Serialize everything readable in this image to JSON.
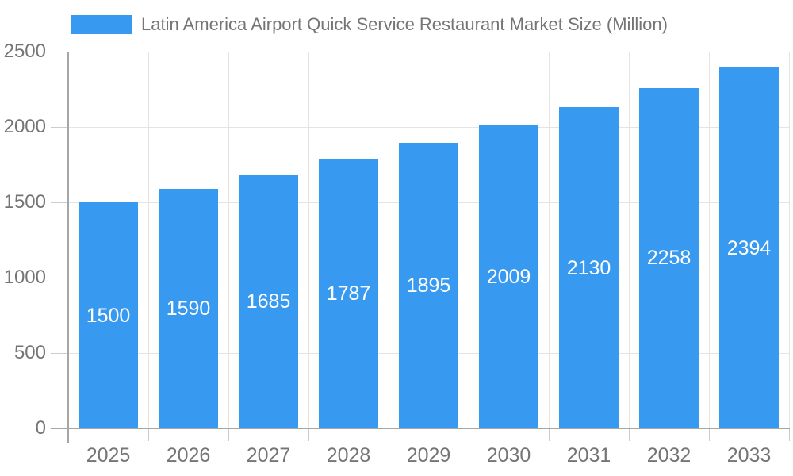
{
  "legend": {
    "label": "Latin America Airport Quick Service Restaurant Market Size (Million)"
  },
  "chart_data": {
    "type": "bar",
    "title": "Latin America Airport Quick Service Restaurant Market Size (Million)",
    "categories": [
      "2025",
      "2026",
      "2027",
      "2028",
      "2029",
      "2030",
      "2031",
      "2032",
      "2033"
    ],
    "values": [
      1500,
      1590,
      1685,
      1787,
      1895,
      2009,
      2130,
      2258,
      2394
    ],
    "xlabel": "",
    "ylabel": "",
    "ylim": [
      0,
      2500
    ],
    "yticks": [
      0,
      500,
      1000,
      1500,
      2000,
      2500
    ],
    "grid": true,
    "legend_position": "top-left",
    "bar_value_labels_inside": true,
    "colors": {
      "bar": "#3899F0",
      "value_label": "#ffffff",
      "axis_text": "#757575",
      "gridline": "#e4e4e4",
      "tick": "#cccccc",
      "axis_line": "#a6a6a6",
      "background": "#ffffff"
    }
  }
}
